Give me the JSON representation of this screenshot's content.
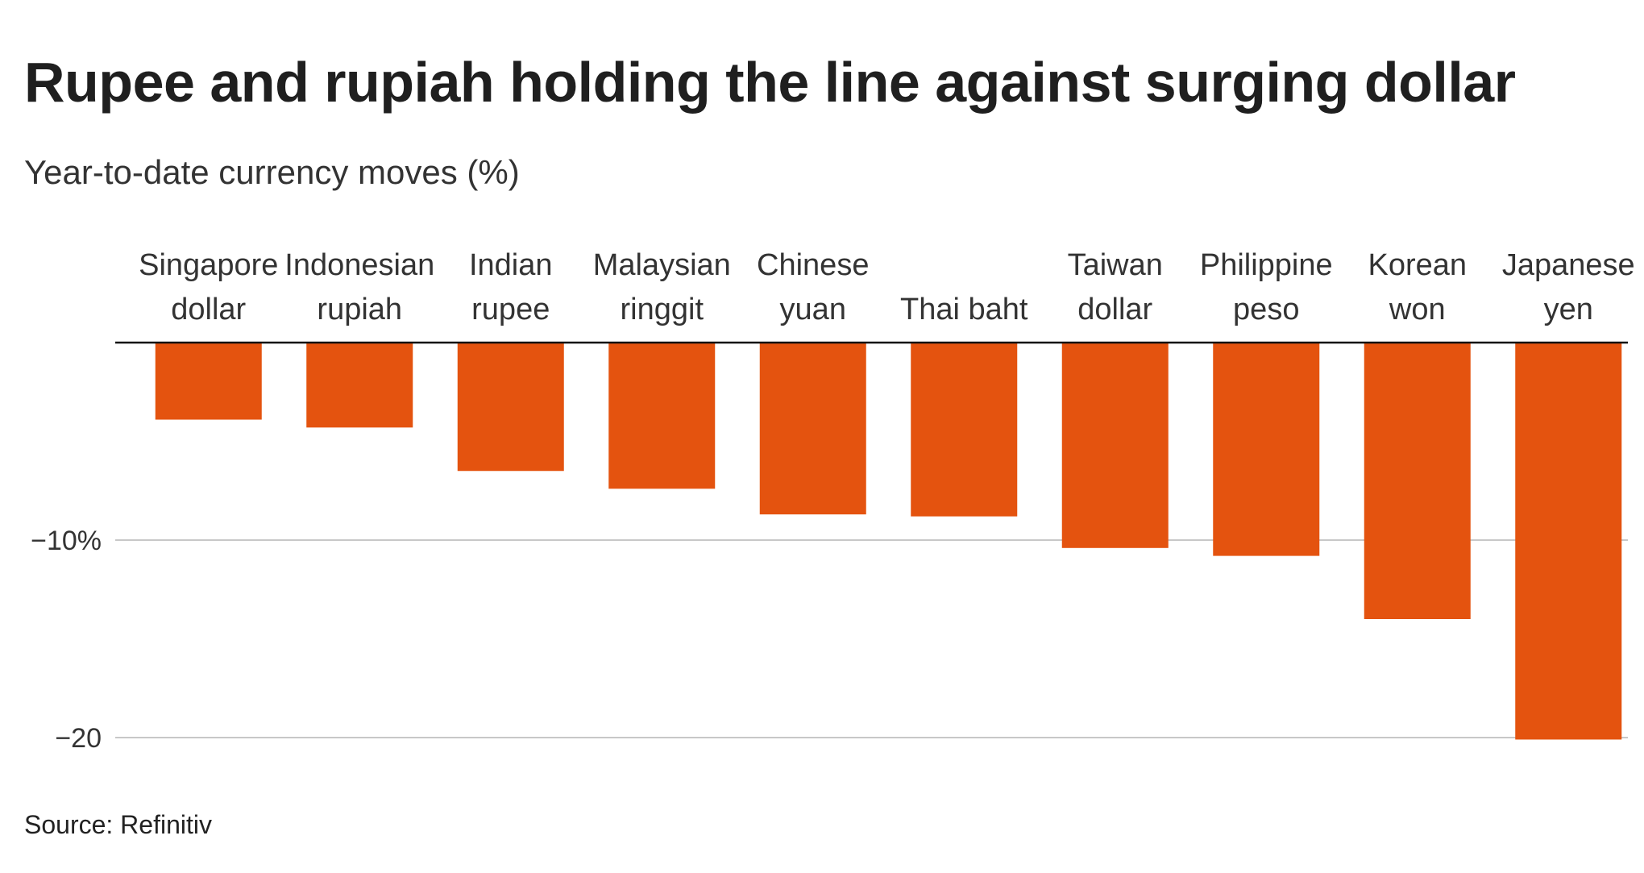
{
  "chart_data": {
    "type": "bar",
    "orientation": "vertical",
    "title": "Rupee and rupiah holding the line against surging dollar",
    "subtitle": "Year-to-date currency moves (%)",
    "source": "Source: Refinitiv",
    "categories": [
      [
        "Singapore",
        "dollar"
      ],
      [
        "Indonesian",
        "rupiah"
      ],
      [
        "Indian",
        "rupee"
      ],
      [
        "Malaysian",
        "ringgit"
      ],
      [
        "Chinese",
        "yuan"
      ],
      [
        "Thai baht"
      ],
      [
        "Taiwan",
        "dollar"
      ],
      [
        "Philippine",
        "peso"
      ],
      [
        "Korean",
        "won"
      ],
      [
        "Japanese",
        "yen"
      ]
    ],
    "values": [
      -3.9,
      -4.3,
      -6.5,
      -7.4,
      -8.7,
      -8.8,
      -10.4,
      -10.8,
      -14.0,
      -20.1
    ],
    "yticks": [
      -10,
      -20
    ],
    "ytick_labels": [
      "−10%",
      "−20"
    ],
    "ylim": [
      -20.5,
      0
    ],
    "grid": true,
    "colors": {
      "bar": "#e4530f",
      "grid": "#c8c8c8",
      "baseline": "#111111"
    }
  }
}
